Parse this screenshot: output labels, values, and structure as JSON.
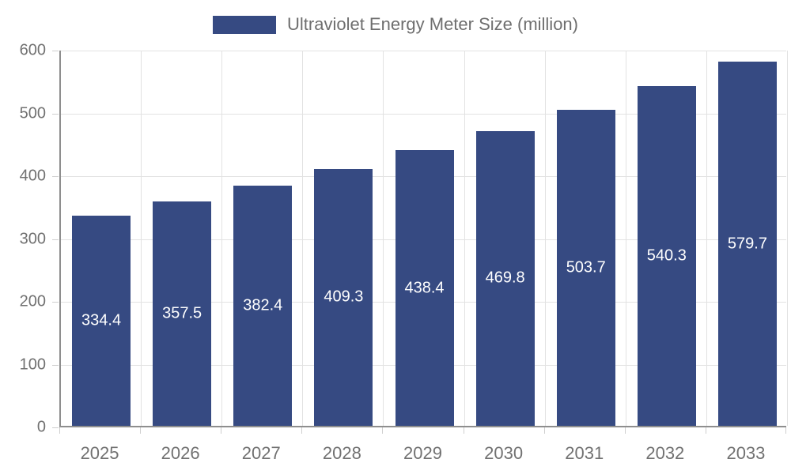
{
  "legend": {
    "label": "Ultraviolet Energy Meter Size (million)",
    "swatch_color": "#364a82"
  },
  "chart_data": {
    "type": "bar",
    "title": "Ultraviolet Energy Meter Size (million)",
    "categories": [
      "2025",
      "2026",
      "2027",
      "2028",
      "2029",
      "2030",
      "2031",
      "2032",
      "2033"
    ],
    "values": [
      334.4,
      357.5,
      382.4,
      409.3,
      438.4,
      469.8,
      503.7,
      540.3,
      579.7
    ],
    "xlabel": "",
    "ylabel": "",
    "ylim": [
      0,
      600
    ],
    "yticks": [
      0,
      100,
      200,
      300,
      400,
      500,
      600
    ],
    "grid": true,
    "legend_position": "top",
    "bar_color": "#364a82",
    "value_label_color": "#ffffff",
    "axis_line_color": "#8e8e8e",
    "gridline_color": "#e2e2e2",
    "tick_text_color": "#717171"
  }
}
